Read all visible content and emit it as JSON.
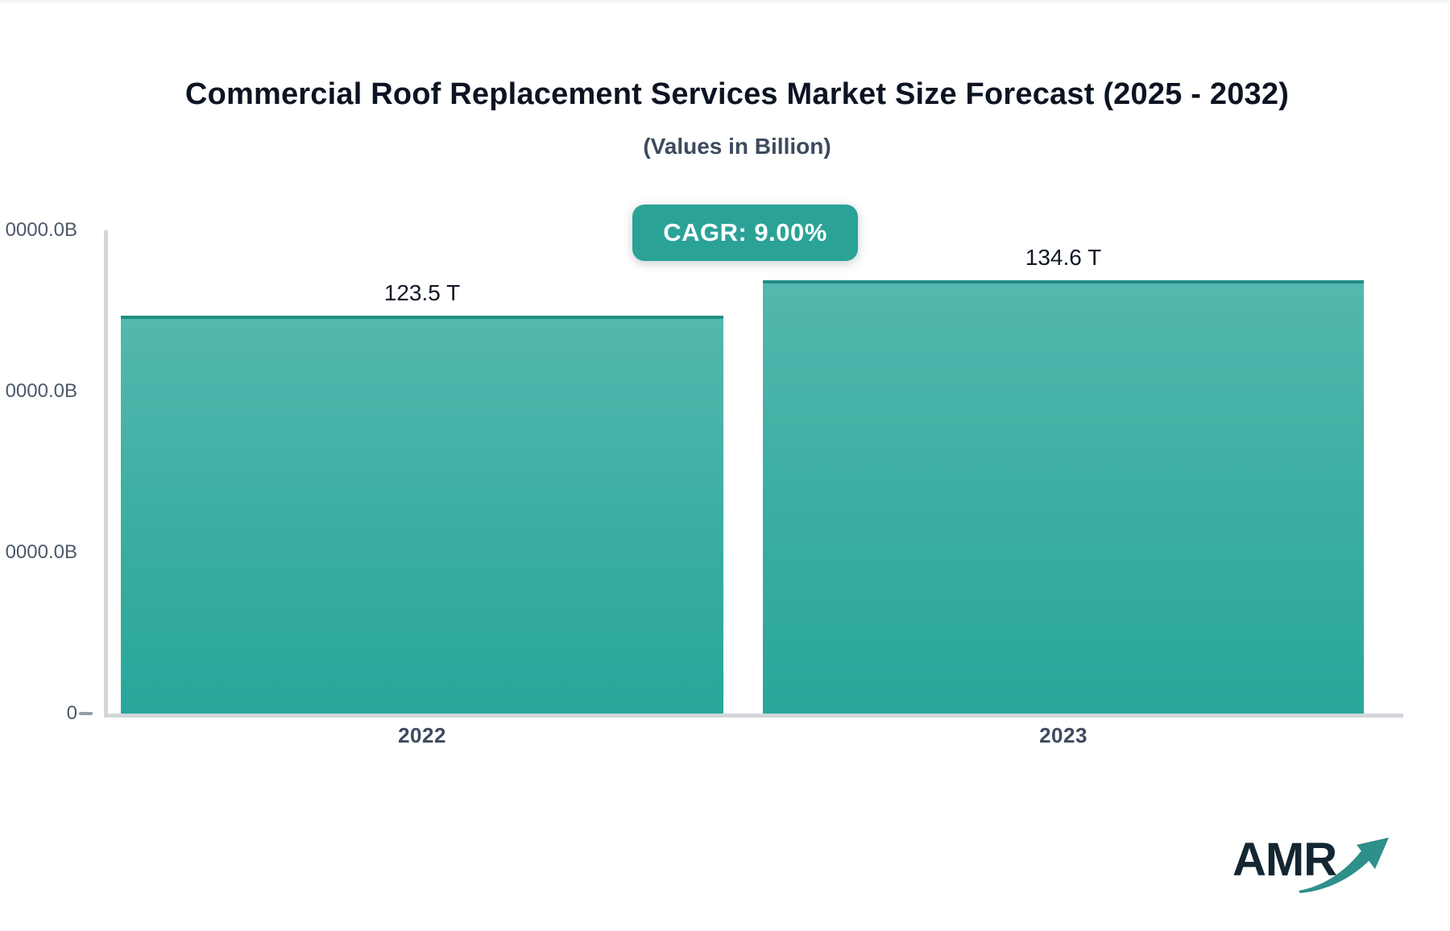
{
  "header": {
    "title": "Commercial Roof Replacement Services Market Size Forecast (2025 - 2032)",
    "subtitle": "(Values in Billion)"
  },
  "badge": {
    "label": "CAGR: 9.00%",
    "background": "#2aa396",
    "text_color": "#ffffff"
  },
  "chart_data": {
    "type": "bar",
    "categories": [
      "2022",
      "2023"
    ],
    "values": [
      123.5,
      134.6
    ],
    "unit": "T",
    "bar_labels": [
      "123.5 T",
      "134.6 T"
    ],
    "title": "Commercial Roof Replacement Services Market Size Forecast (2025 - 2032)",
    "subtitle": "(Values in Billion)",
    "xlabel": "",
    "ylabel": "",
    "ylim": [
      0,
      150
    ],
    "y_tick_labels": [
      "0000.0B",
      "0000.0B",
      "0000.0B",
      "0"
    ],
    "grid": false,
    "legend": false,
    "bar_color_top": "#54b8ae",
    "bar_color_bottom": "#29a79a",
    "bar_top_border_color": "#1f8e84",
    "axis_color": "#d2d6db"
  },
  "logo": {
    "text": "AMR",
    "text_color": "#132631",
    "arrow_color": "#2e8f8b"
  }
}
